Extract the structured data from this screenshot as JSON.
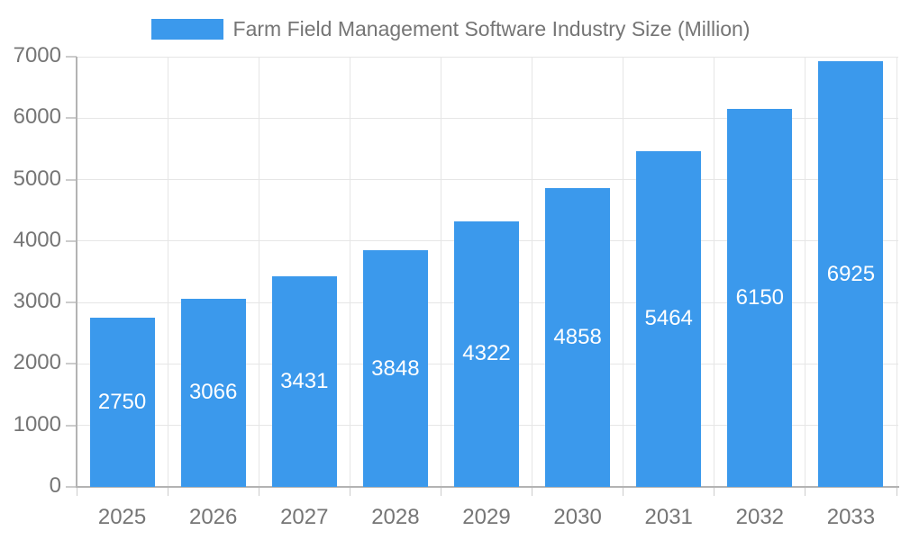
{
  "legend": {
    "label": "Farm Field Management Software Industry Size (Million)"
  },
  "chart_data": {
    "type": "bar",
    "title": "Farm Field Management Software Industry Size (Million)",
    "categories": [
      "2025",
      "2026",
      "2027",
      "2028",
      "2029",
      "2030",
      "2031",
      "2032",
      "2033"
    ],
    "values": [
      2750,
      3066,
      3431,
      3848,
      4322,
      4858,
      5464,
      6150,
      6925
    ],
    "xlabel": "",
    "ylabel": "",
    "ylim": [
      0,
      7000
    ],
    "ytick_interval": 1000,
    "ytick_labels": [
      "0",
      "1000",
      "2000",
      "3000",
      "4000",
      "5000",
      "6000",
      "7000"
    ],
    "grid": true,
    "legend_position": "top-center",
    "value_label_style": "inside-center-white",
    "colors": {
      "bar": "#3b99ec",
      "gridline": "#e6e6e6",
      "axis_line": "#b3b3b3",
      "tick": "#cccccc",
      "axis_text": "#757575",
      "value_text": "#ffffff",
      "background": "#ffffff"
    }
  }
}
